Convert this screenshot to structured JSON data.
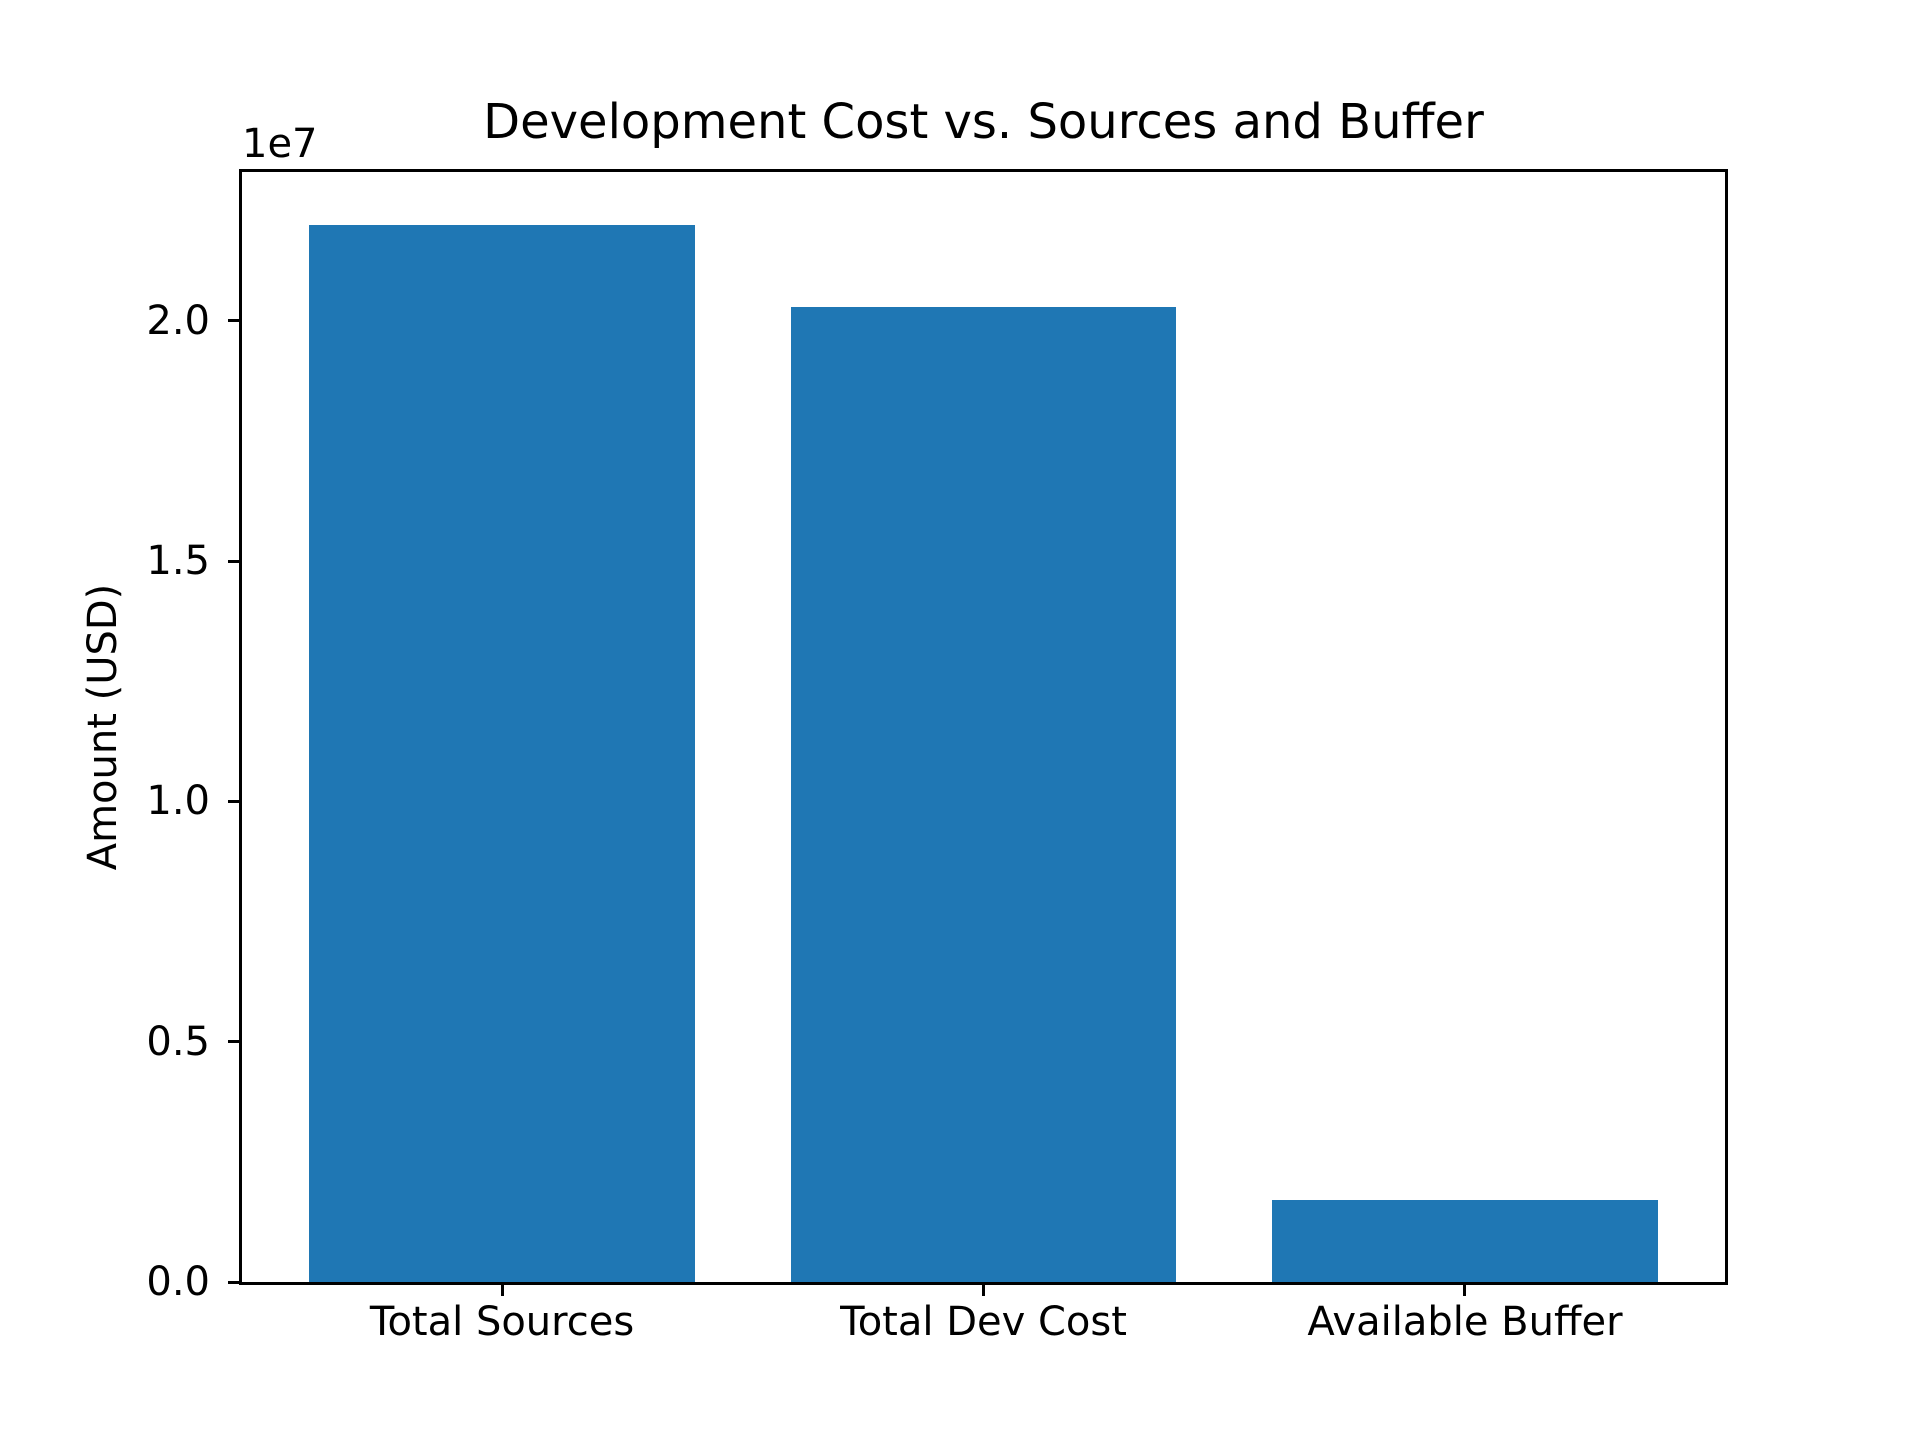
{
  "chart_data": {
    "type": "bar",
    "title": "Development Cost vs. Sources and Buffer",
    "categories": [
      "Total Sources",
      "Total Dev Cost",
      "Available Buffer"
    ],
    "values": [
      22000000,
      20300000,
      1700000
    ],
    "xlabel": "",
    "ylabel": "Amount (USD)",
    "offset_label": "1e7",
    "bar_color": "#1f77b4",
    "axis_color": "#000000",
    "background_color": "#ffffff",
    "ylim": [
      0,
      23100000
    ],
    "yticks": [
      0,
      5000000,
      10000000,
      15000000,
      20000000
    ],
    "ytick_labels": [
      "0.0",
      "0.5",
      "1.0",
      "1.5",
      "2.0"
    ],
    "xlim": [
      -0.54,
      2.54
    ],
    "bar_width": 0.8,
    "grid": false,
    "legend": "none"
  }
}
